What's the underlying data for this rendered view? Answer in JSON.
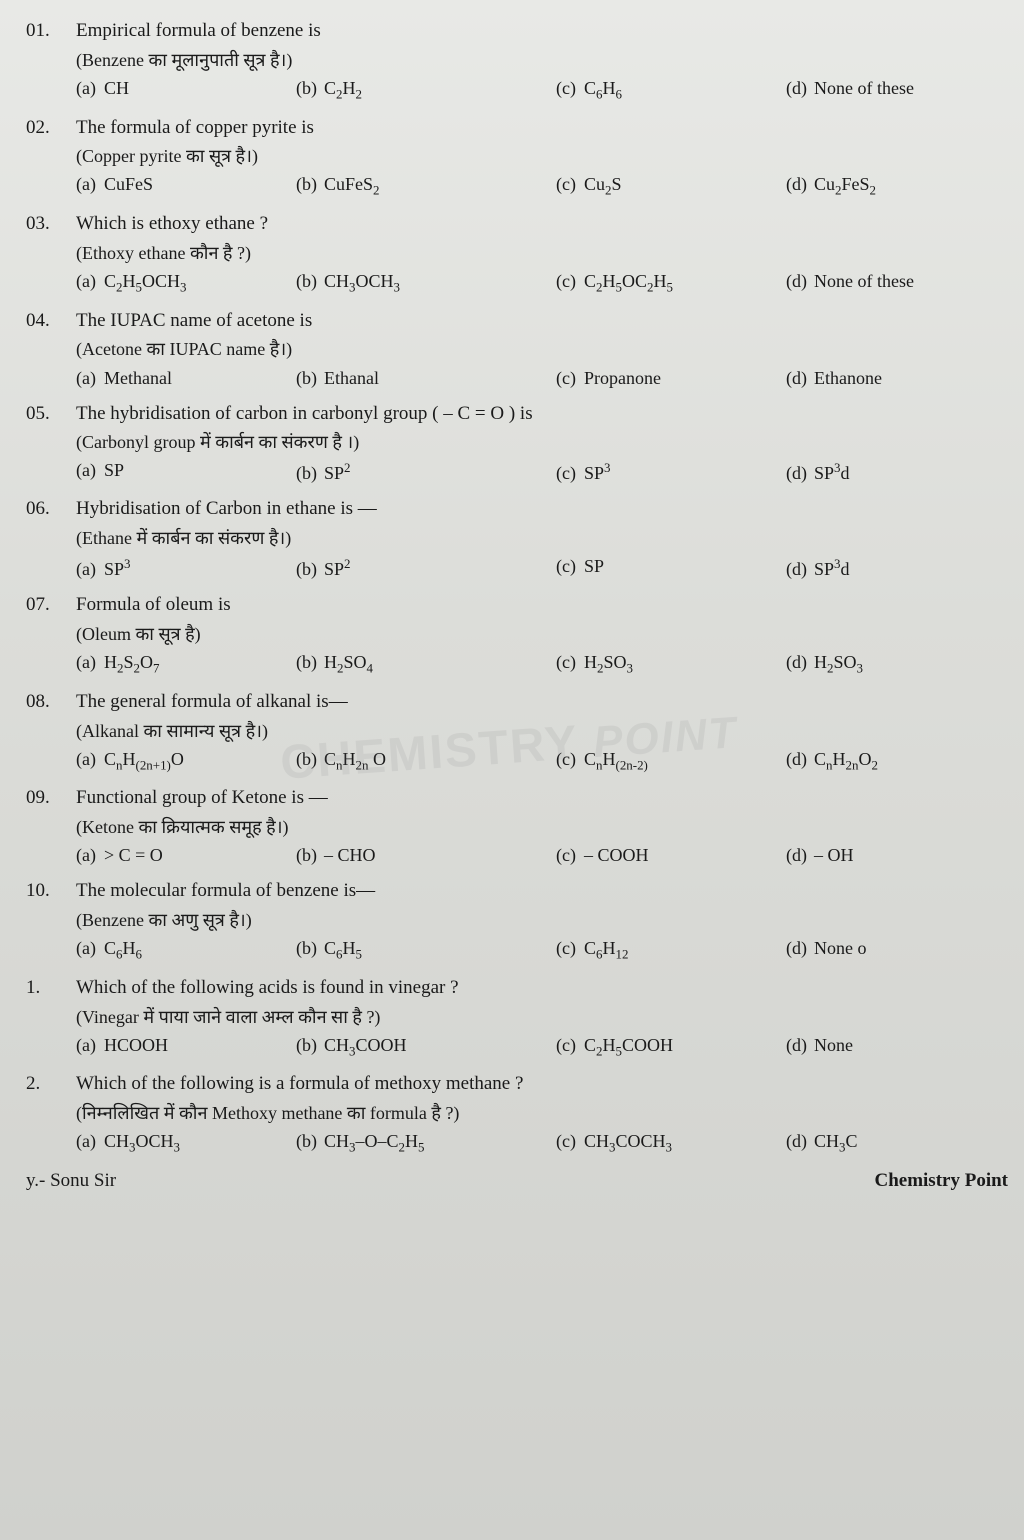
{
  "questions": [
    {
      "num": "01.",
      "text": "Empirical formula of benzene is",
      "sub": "(Benzene का मूलानुपाती सूत्र है।)",
      "opts": {
        "a": "CH",
        "b": "C<sub>2</sub>H<sub>2</sub>",
        "c": "C<sub>6</sub>H<sub>6</sub>",
        "d": "None of these"
      }
    },
    {
      "num": "02.",
      "text": "The formula of copper pyrite is",
      "sub": "(Copper pyrite का सूत्र है।)",
      "opts": {
        "a": "CuFeS",
        "b": "CuFeS<sub>2</sub>",
        "c": "Cu<sub>2</sub>S",
        "d": "Cu<sub>2</sub>FeS<sub>2</sub>"
      }
    },
    {
      "num": "03.",
      "text": "Which is ethoxy ethane ?",
      "sub": "(Ethoxy ethane कौन है ?)",
      "opts": {
        "a": "C<sub>2</sub>H<sub>5</sub>OCH<sub>3</sub>",
        "b": "CH<sub>3</sub>OCH<sub>3</sub>",
        "c": "C<sub>2</sub>H<sub>5</sub>OC<sub>2</sub>H<sub>5</sub>",
        "d": "None of these"
      }
    },
    {
      "num": "04.",
      "text": "The IUPAC name of acetone is",
      "sub": "(Acetone का IUPAC name है।)",
      "opts": {
        "a": "Methanal",
        "b": "Ethanal",
        "c": "Propanone",
        "d": "Ethanone"
      }
    },
    {
      "num": "05.",
      "text": "The hybridisation of carbon in carbonyl group ( – C = O ) is",
      "sub": "(Carbonyl group में कार्बन का संकरण है ।)",
      "opts": {
        "a": "SP",
        "b": "SP<sup>2</sup>",
        "c": "SP<sup>3</sup>",
        "d": "SP<sup>3</sup>d"
      }
    },
    {
      "num": "06.",
      "text": "Hybridisation of Carbon in ethane is —",
      "sub": "(Ethane में कार्बन का संकरण है।)",
      "opts": {
        "a": "SP<sup>3</sup>",
        "b": "SP<sup>2</sup>",
        "c": "SP",
        "d": "SP<sup>3</sup>d"
      }
    },
    {
      "num": "07.",
      "text": "Formula of oleum is",
      "sub": "(Oleum का सूत्र है)",
      "opts": {
        "a": "H<sub>2</sub>S<sub>2</sub>O<sub>7</sub>",
        "b": "H<sub>2</sub>SO<sub>4</sub>",
        "c": "H<sub>2</sub>SO<sub>3</sub>",
        "d": "H<sub>2</sub>SO<sub>3</sub>"
      }
    },
    {
      "num": "08.",
      "text": "The general formula of alkanal is—",
      "sub": "(Alkanal का सामान्य सूत्र है।)",
      "opts": {
        "a": "C<sub>n</sub>H<sub>(2n+1)</sub>O",
        "b": "C<sub>n</sub>H<sub>2n</sub> O",
        "c": "C<sub>n</sub>H<sub>(2n-2)</sub>",
        "d": "C<sub>n</sub>H<sub>2n</sub>O<sub>2</sub>"
      }
    },
    {
      "num": "09.",
      "text": "Functional group of Ketone is —",
      "sub": "(Ketone का क्रियात्मक समूह है।)",
      "opts": {
        "a": "> C = O",
        "b": "– CHO",
        "c": "– COOH",
        "d": "– OH"
      }
    },
    {
      "num": "10.",
      "text": "The molecular formula of benzene is—",
      "sub": "(Benzene का अणु सूत्र है।)",
      "opts": {
        "a": "C<sub>6</sub>H<sub>6</sub>",
        "b": "C<sub>6</sub>H<sub>5</sub>",
        "c": "C<sub>6</sub>H<sub>12</sub>",
        "d": "None o"
      }
    },
    {
      "num": "1.",
      "text": "Which of the following acids is found in vinegar ?",
      "sub": "(Vinegar में पाया जाने वाला अम्ल कौन सा है ?)",
      "opts": {
        "a": "HCOOH",
        "b": "CH<sub>3</sub>COOH",
        "c": "C<sub>2</sub>H<sub>5</sub>COOH",
        "d": "None"
      }
    },
    {
      "num": "2.",
      "text": "Which of the following is a formula of methoxy methane ?",
      "sub": "(निम्नलिखित में कौन Methoxy methane का formula है ?)",
      "opts": {
        "a": "CH<sub>3</sub>OCH<sub>3</sub>",
        "b": "CH<sub>3</sub>–O–C<sub>2</sub>H<sub>5</sub>",
        "c": "CH<sub>3</sub>COCH<sub>3</sub>",
        "d": "CH<sub>3</sub>C"
      }
    }
  ],
  "watermark": {
    "part1": "CHEMISTRY",
    "part2": "POINT"
  },
  "footer": {
    "left": "y.- Sonu Sir",
    "right": "Chemistry Point"
  },
  "labels": {
    "a": "(a)",
    "b": "(b)",
    "c": "(c)",
    "d": "(d)"
  },
  "colors": {
    "text": "#1a1a1a",
    "background": "#d8dad7",
    "watermark": "rgba(120,125,135,0.12)"
  },
  "typography": {
    "question_fontsize": 19,
    "option_fontsize": 18,
    "font_family": "Times New Roman"
  }
}
